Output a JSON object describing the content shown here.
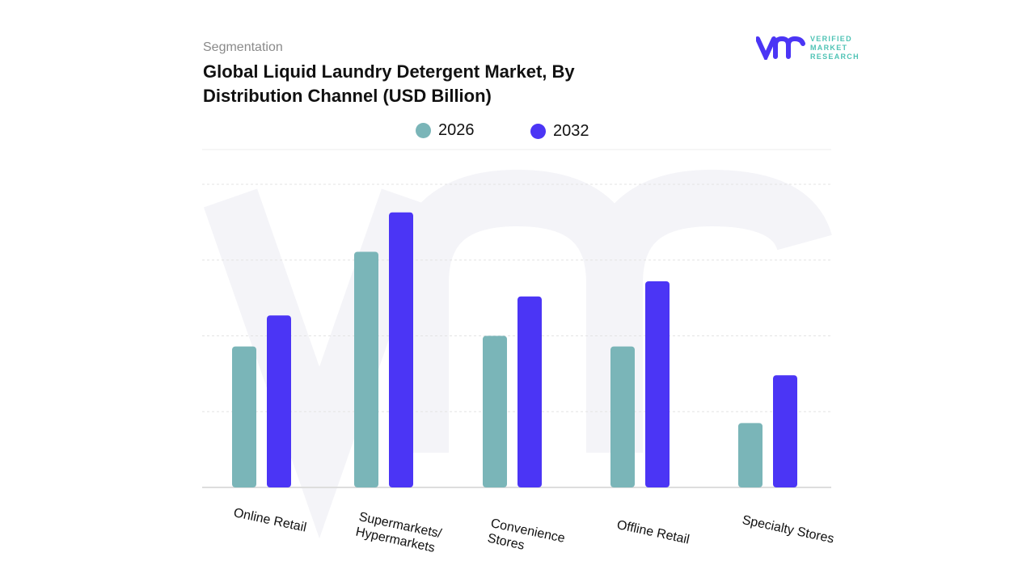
{
  "header": {
    "segment_label": "Segmentation",
    "title": "Global Liquid Laundry Detergent Market, By Distribution Channel (USD Billion)"
  },
  "logo": {
    "text_line1": "VERIFIED",
    "text_line2": "MARKET",
    "text_line3": "RESEARCH",
    "mark": "vmr"
  },
  "colors": {
    "series_2026": "#7ab5b8",
    "series_2032": "#4b35f5",
    "grid": "#e3e3e3"
  },
  "chart_data": {
    "type": "bar",
    "title": "Global Liquid Laundry Detergent Market, By Distribution Channel (USD Billion)",
    "categories": [
      "Online Retail",
      "Supermarkets/\nHypermarkets",
      "Convenience\nStores",
      "Offline Retail",
      "Specialty Stores"
    ],
    "series": [
      {
        "name": "2026",
        "values": [
          1.86,
          3.11,
          2.0,
          1.86,
          0.85
        ]
      },
      {
        "name": "2032",
        "values": [
          2.27,
          3.63,
          2.52,
          2.72,
          1.48
        ]
      }
    ],
    "ylim": [
      0,
      4
    ],
    "grid": true,
    "y_tick_labels_shown": false,
    "legend": "top-center"
  }
}
